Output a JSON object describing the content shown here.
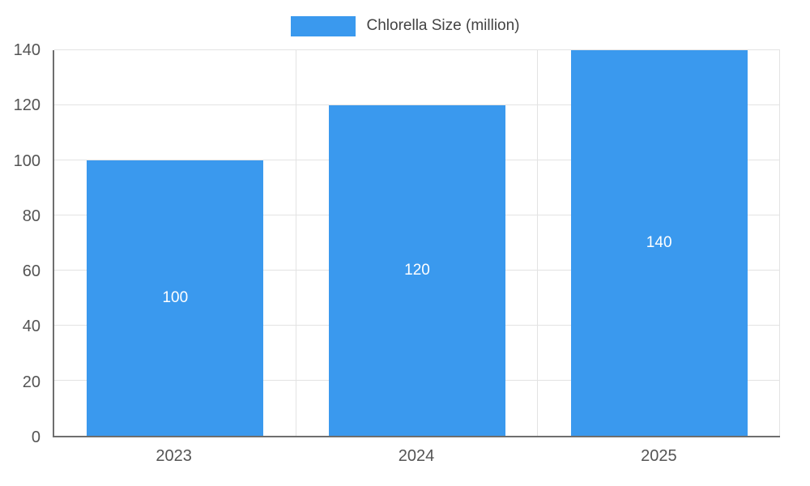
{
  "chart_data": {
    "type": "bar",
    "title": "",
    "legend": {
      "position": "top",
      "label": "Chlorella Size (million)"
    },
    "categories": [
      "2023",
      "2024",
      "2025"
    ],
    "series": [
      {
        "name": "Chlorella Size (million)",
        "values": [
          100,
          120,
          140
        ]
      }
    ],
    "values": [
      100,
      120,
      140
    ],
    "bar_value_labels": [
      "100",
      "120",
      "140"
    ],
    "xlabel": "",
    "ylabel": "",
    "ylim": [
      0,
      140
    ],
    "yticks": [
      0,
      20,
      40,
      60,
      80,
      100,
      120,
      140
    ],
    "grid": true,
    "colors": {
      "bar": "#3A99EE",
      "bar_label": "#FFFFFF",
      "axis": "#6E6E6E",
      "tick_label": "#545454",
      "gridline": "#E3E3E3",
      "legend_text": "#434343",
      "background": "#FFFFFF"
    }
  }
}
